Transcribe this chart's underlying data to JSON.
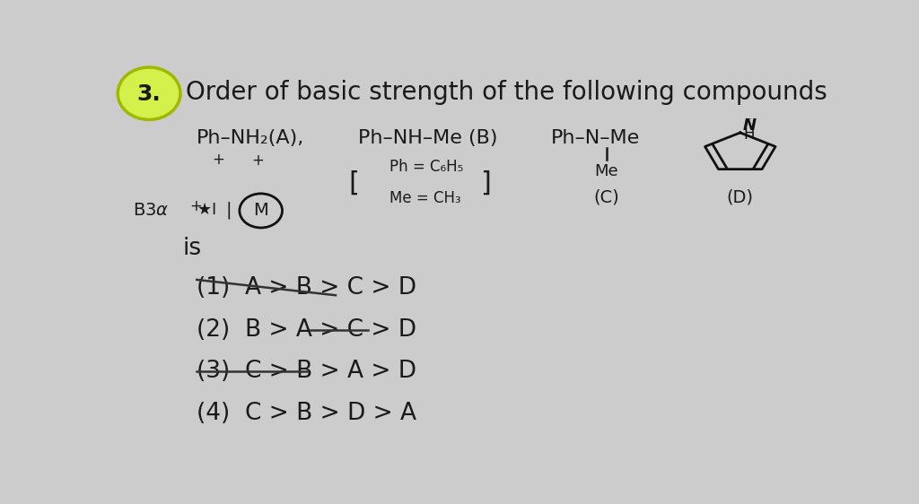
{
  "background_color": "#cccccc",
  "title": "Order of basic strength of the following compounds",
  "question_number": "3.",
  "circle_color": "#d4f04a",
  "compound_A": "Ph–NH₂(A),",
  "compound_B": "Ph–NH–Me (B)",
  "compound_C_label": "Ph–N–Me",
  "compound_C_sub": "Me",
  "compound_C_paren": "(C)",
  "compound_D_paren": "(D)",
  "bracket_line1": "Ph = C₆H₅",
  "bracket_line2": "Me = CH₃",
  "is_text": "is",
  "option1": "(1)  A > B > C > D",
  "option2": "(2)  B > A > C > D",
  "option3": "(3)  C > B > A > D",
  "option4": "(4)  C > B > D > A",
  "text_color": "#1a1a1a",
  "strike_color": "#333333"
}
